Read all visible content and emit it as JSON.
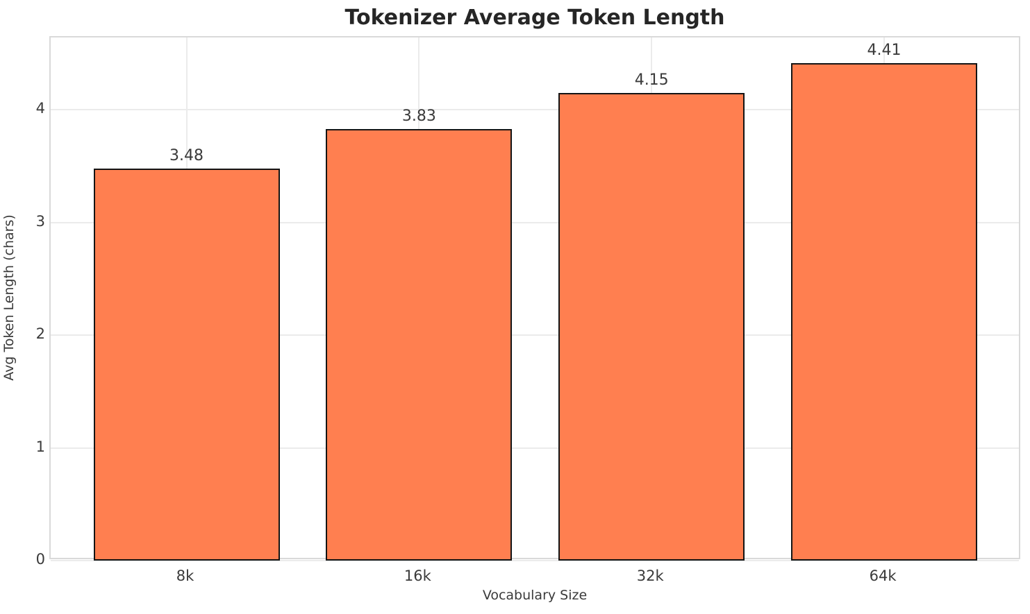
{
  "chart_data": {
    "type": "bar",
    "title": "Tokenizer Average Token Length",
    "xlabel": "Vocabulary Size",
    "ylabel": "Avg Token Length (chars)",
    "categories": [
      "8k",
      "16k",
      "32k",
      "64k"
    ],
    "values": [
      3.48,
      3.83,
      4.15,
      4.41
    ],
    "value_labels": [
      "3.48",
      "3.83",
      "4.15",
      "4.41"
    ],
    "yticks": [
      0,
      1,
      2,
      3,
      4
    ],
    "ytick_labels": [
      "0",
      "1",
      "2",
      "3",
      "4"
    ],
    "ylim": [
      0,
      4.64
    ],
    "grid": true,
    "legend_position": "none",
    "colors": {
      "bar_fill": "#FF7F50",
      "bar_edge": "#141414",
      "grid": "#ebebeb",
      "spine": "#d9d9d9",
      "title_text": "#262626",
      "tick_text": "#3a3a3a"
    }
  }
}
